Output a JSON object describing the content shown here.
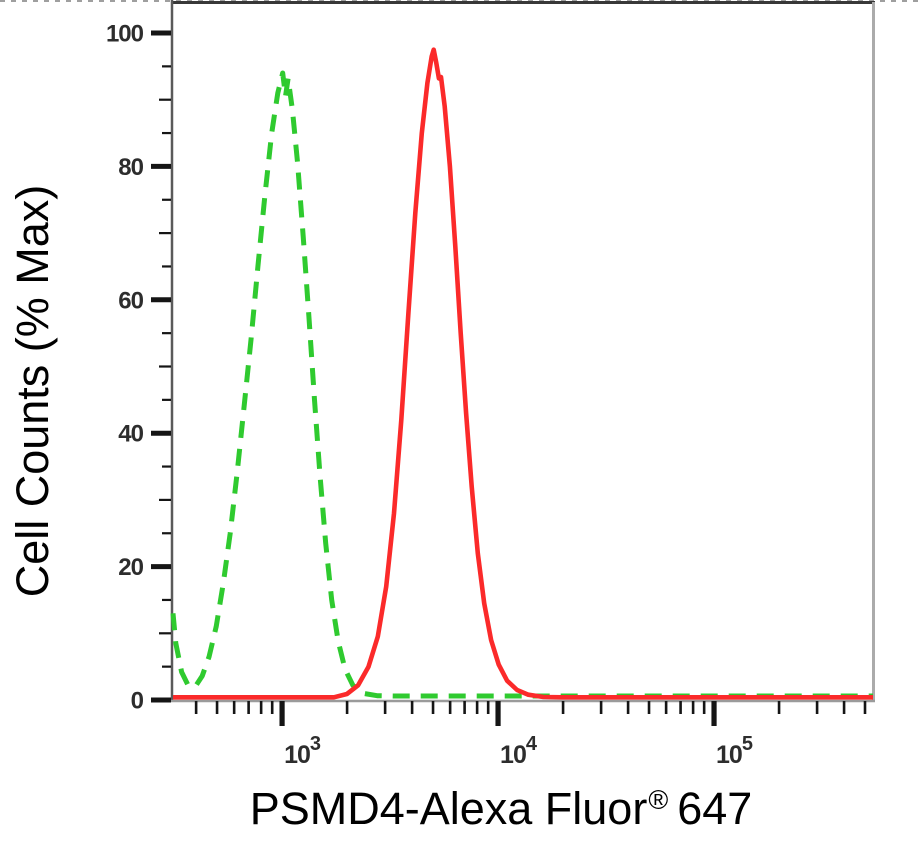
{
  "page": {
    "background": "#ffffff",
    "crop_edge_color": "#9f9f9f"
  },
  "chart_data": {
    "type": "line",
    "subtype": "flow-cytometry-histogram-overlay",
    "title": "",
    "ylabel": "Cell Counts (% Max)",
    "xlabel": {
      "main": "PSMD4-Alexa Fluor",
      "sup": "®",
      "tail": "647"
    },
    "x_scale": "log10",
    "x_range_log": [
      2.495,
      5.736
    ],
    "ylim": [
      0,
      104.5
    ],
    "grid": "off",
    "legend": "none",
    "y_major_ticks": [
      100,
      80,
      60,
      40,
      20,
      0
    ],
    "y_minor_step": 5,
    "x_major_ticks_log": [
      3,
      4,
      5
    ],
    "x_major_tick_labels": [
      {
        "base": "10",
        "exp": "3"
      },
      {
        "base": "10",
        "exp": "4"
      },
      {
        "base": "10",
        "exp": "5"
      }
    ],
    "x_minor_ticks": [
      400,
      500,
      600,
      700,
      800,
      900,
      2000,
      3000,
      4000,
      5000,
      6000,
      7000,
      8000,
      9000,
      20000,
      30000,
      40000,
      50000,
      60000,
      70000,
      80000,
      90000,
      200000,
      300000,
      400000,
      500000
    ],
    "colors": {
      "red_curve": "#fb2a2a",
      "green_curve": "#2fca2f",
      "tick": "#151515",
      "axis_left": "#5a5a5a",
      "axis_bottom": "#9b9b9b",
      "border_top": "#383838",
      "border_right": "#ababab"
    },
    "series": [
      {
        "name": "green-dashed",
        "style": "dashed",
        "color": "#2fca2f",
        "peak": {
          "x": 1050,
          "pct": 94
        },
        "points_log_pct": [
          [
            2.495,
            13
          ],
          [
            2.508,
            8.5
          ],
          [
            2.535,
            4.2
          ],
          [
            2.565,
            2.2
          ],
          [
            2.598,
            2.0
          ],
          [
            2.63,
            3.6
          ],
          [
            2.662,
            6.5
          ],
          [
            2.695,
            11
          ],
          [
            2.728,
            17.5
          ],
          [
            2.76,
            25
          ],
          [
            2.792,
            34
          ],
          [
            2.824,
            44
          ],
          [
            2.856,
            54
          ],
          [
            2.888,
            65
          ],
          [
            2.92,
            75.5
          ],
          [
            2.952,
            85
          ],
          [
            2.98,
            91
          ],
          [
            3.003,
            94
          ],
          [
            3.016,
            90.5
          ],
          [
            3.028,
            93.2
          ],
          [
            3.048,
            88.5
          ],
          [
            3.072,
            80.5
          ],
          [
            3.098,
            69.5
          ],
          [
            3.124,
            57.5
          ],
          [
            3.15,
            45
          ],
          [
            3.176,
            33.5
          ],
          [
            3.202,
            23.5
          ],
          [
            3.23,
            15
          ],
          [
            3.26,
            8.8
          ],
          [
            3.292,
            4.6
          ],
          [
            3.328,
            2.2
          ],
          [
            3.375,
            1.0
          ],
          [
            3.44,
            0.65
          ],
          [
            3.52,
            0.6
          ],
          [
            5.736,
            0.6
          ]
        ]
      },
      {
        "name": "red-solid",
        "style": "solid",
        "color": "#fb2a2a",
        "peak": {
          "x": 5000,
          "pct": 97.5
        },
        "points_log_pct": [
          [
            2.495,
            0.4
          ],
          [
            3.24,
            0.4
          ],
          [
            3.3,
            0.9
          ],
          [
            3.352,
            2.2
          ],
          [
            3.4,
            5
          ],
          [
            3.443,
            9.5
          ],
          [
            3.482,
            17
          ],
          [
            3.518,
            28
          ],
          [
            3.552,
            42
          ],
          [
            3.585,
            58
          ],
          [
            3.617,
            73
          ],
          [
            3.647,
            85
          ],
          [
            3.673,
            92.5
          ],
          [
            3.693,
            96.5
          ],
          [
            3.702,
            97.5
          ],
          [
            3.714,
            95.5
          ],
          [
            3.726,
            93.2
          ],
          [
            3.736,
            93.4
          ],
          [
            3.753,
            89
          ],
          [
            3.777,
            80
          ],
          [
            3.802,
            68
          ],
          [
            3.827,
            55
          ],
          [
            3.852,
            43
          ],
          [
            3.878,
            32
          ],
          [
            3.906,
            22
          ],
          [
            3.936,
            14.5
          ],
          [
            3.968,
            9
          ],
          [
            4.003,
            5.3
          ],
          [
            4.042,
            2.9
          ],
          [
            4.088,
            1.5
          ],
          [
            4.14,
            0.8
          ],
          [
            4.21,
            0.45
          ],
          [
            4.3,
            0.4
          ],
          [
            5.736,
            0.4
          ]
        ]
      }
    ]
  }
}
